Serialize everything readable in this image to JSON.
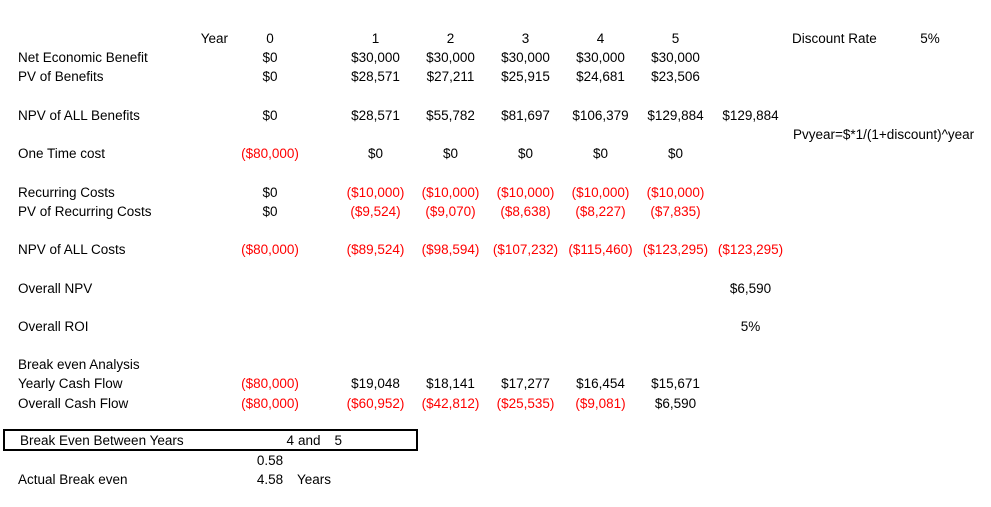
{
  "header": {
    "year_label": "Year",
    "year_columns": [
      "0",
      "1",
      "2",
      "3",
      "4",
      "5"
    ],
    "discount_rate_label": "Discount Rate",
    "discount_rate_value": "5%"
  },
  "note": "Pvyear=$*1/(1+discount)^year",
  "rows": {
    "net_economic_benefit": {
      "label": "Net Economic Benefit",
      "values": [
        "$0",
        "$30,000",
        "$30,000",
        "$30,000",
        "$30,000",
        "$30,000"
      ]
    },
    "pv_of_benefits": {
      "label": "PV of Benefits",
      "values": [
        "$0",
        "$28,571",
        "$27,211",
        "$25,915",
        "$24,681",
        "$23,506"
      ]
    },
    "npv_all_benefits": {
      "label": "NPV of ALL Benefits",
      "values": [
        "$0",
        "$28,571",
        "$55,782",
        "$81,697",
        "$106,379",
        "$129,884"
      ],
      "total": "$129,884"
    },
    "one_time_cost": {
      "label": "One Time cost",
      "values": [
        "($80,000)",
        "$0",
        "$0",
        "$0",
        "$0",
        "$0"
      ]
    },
    "recurring_costs": {
      "label": "Recurring Costs",
      "values": [
        "$0",
        "($10,000)",
        "($10,000)",
        "($10,000)",
        "($10,000)",
        "($10,000)"
      ]
    },
    "pv_recurring_costs": {
      "label": "PV of Recurring Costs",
      "values": [
        "$0",
        "($9,524)",
        "($9,070)",
        "($8,638)",
        "($8,227)",
        "($7,835)"
      ]
    },
    "npv_all_costs": {
      "label": "NPV of ALL Costs",
      "values": [
        "($80,000)",
        "($89,524)",
        "($98,594)",
        "($107,232)",
        "($115,460)",
        "($123,295)"
      ],
      "total": "($123,295)"
    },
    "overall_npv": {
      "label": "Overall NPV",
      "total": "$6,590"
    },
    "overall_roi": {
      "label": "Overall ROI",
      "total": "5%"
    },
    "break_even_analysis": {
      "label": "Break even Analysis"
    },
    "yearly_cash_flow": {
      "label": "Yearly Cash Flow",
      "values": [
        "($80,000)",
        "$19,048",
        "$18,141",
        "$17,277",
        "$16,454",
        "$15,671"
      ]
    },
    "overall_cash_flow": {
      "label": "Overall Cash Flow",
      "values": [
        "($80,000)",
        "($60,952)",
        "($42,812)",
        "($25,535)",
        "($9,081)",
        "$6,590"
      ]
    }
  },
  "break_even_box": {
    "label": "Break Even Between Years",
    "year_start": "4",
    "conjunction": "and",
    "year_end": "5"
  },
  "break_even_fraction": "0.58",
  "actual_break_even": {
    "label": "Actual Break even",
    "value": "4.58",
    "unit": "Years"
  },
  "colors": {
    "negative": "#FF0000",
    "text": "#000000",
    "box_border": "#000000",
    "background": "#FFFFFF"
  }
}
